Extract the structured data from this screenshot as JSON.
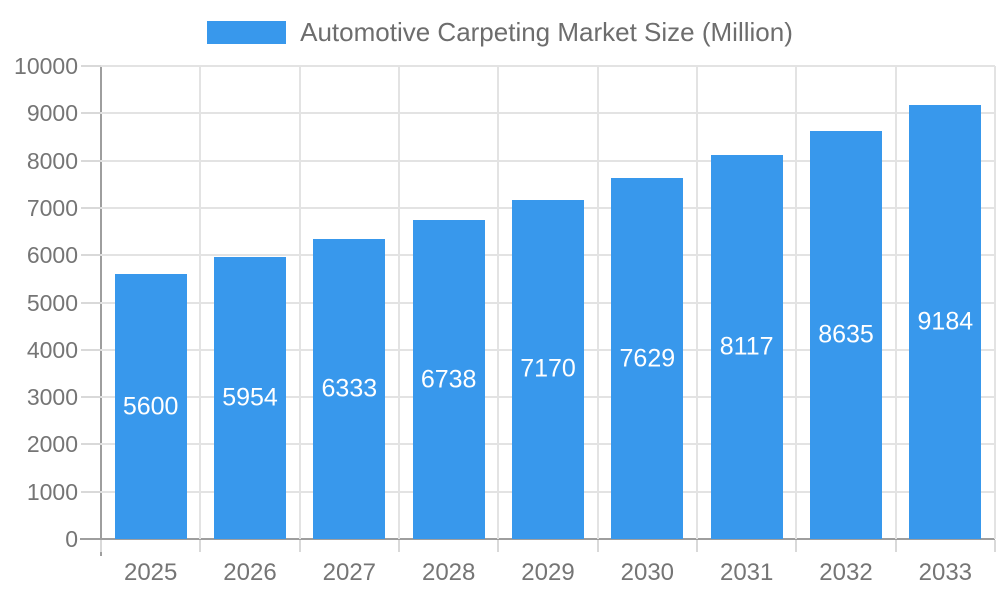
{
  "chart_data": {
    "type": "bar",
    "title": "Automotive Carpeting Market Size (Million)",
    "legend": {
      "label": "Automotive Carpeting Market Size (Million)",
      "position": "top"
    },
    "categories": [
      "2025",
      "2026",
      "2027",
      "2028",
      "2029",
      "2030",
      "2031",
      "2032",
      "2033"
    ],
    "series": [
      {
        "name": "Automotive Carpeting Market Size (Million)",
        "values": [
          5600,
          5954,
          6333,
          6738,
          7170,
          7629,
          8117,
          8635,
          9184
        ]
      }
    ],
    "xlabel": "",
    "ylabel": "",
    "ylim": [
      0,
      10000
    ],
    "yticks": [
      0,
      1000,
      2000,
      3000,
      4000,
      5000,
      6000,
      7000,
      8000,
      9000,
      10000
    ],
    "grid": true,
    "legend_position": "top",
    "colors": {
      "bar": "#3898EC",
      "bar_label_text": "#ffffff",
      "grid_line": "#e3e3e3",
      "tick_mark": "#d9d9d9",
      "axis_line": "#9e9e9e",
      "axis_text": "#757575",
      "legend_text": "#6d6d6d",
      "background": "#ffffff"
    }
  }
}
